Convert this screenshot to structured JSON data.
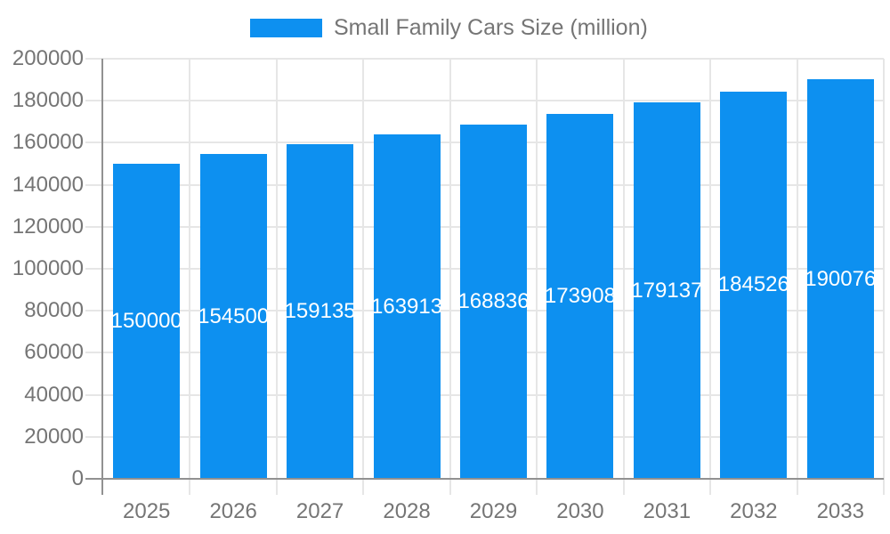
{
  "chart_data": {
    "type": "bar",
    "title": "",
    "legend": {
      "position": "top",
      "label": "Small Family Cars Size (million)"
    },
    "categories": [
      "2025",
      "2026",
      "2027",
      "2028",
      "2029",
      "2030",
      "2031",
      "2032",
      "2033"
    ],
    "series": [
      {
        "name": "Small Family Cars Size (million)",
        "values": [
          150000,
          154500,
          159135,
          163913,
          168836,
          173908,
          179137,
          184526,
          190076
        ],
        "color": "#0d90f0"
      }
    ],
    "xlabel": "",
    "ylabel": "",
    "ylim": [
      0,
      200000
    ],
    "ytick_step": 20000,
    "yticks": [
      0,
      20000,
      40000,
      60000,
      80000,
      100000,
      120000,
      140000,
      160000,
      180000,
      200000
    ],
    "grid": true,
    "value_labels": {
      "visible": true,
      "position": "center",
      "color": "#ffffff"
    }
  },
  "colors": {
    "background": "#ffffff",
    "bar": "#0d90f0",
    "axis_text": "#757575",
    "legend_text": "#757575",
    "grid_line": "#e6e6e6",
    "axis_line": "#919191",
    "bar_label": "#ffffff"
  }
}
